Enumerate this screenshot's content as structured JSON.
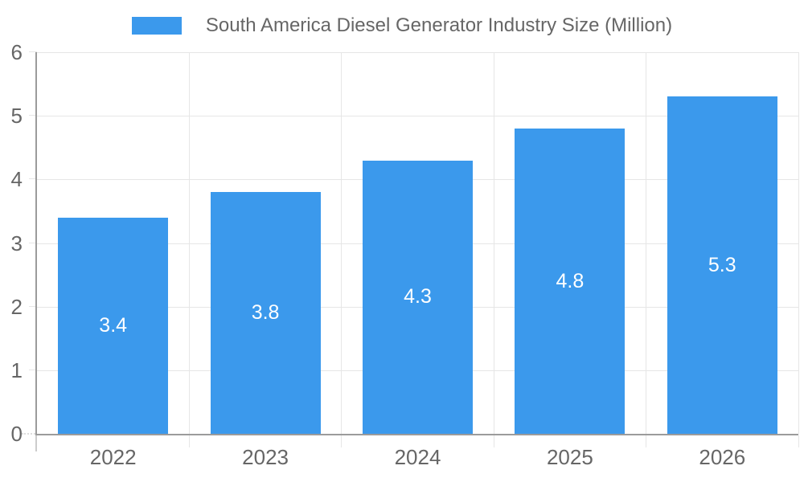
{
  "chart_data": {
    "type": "bar",
    "title": "South America Diesel Generator Industry Size (Million)",
    "categories": [
      "2022",
      "2023",
      "2024",
      "2025",
      "2026"
    ],
    "values": [
      3.4,
      3.8,
      4.3,
      4.8,
      5.3
    ],
    "value_labels": [
      "3.4",
      "3.8",
      "4.3",
      "4.8",
      "5.3"
    ],
    "xlabel": "",
    "ylabel": "",
    "ylim": [
      0,
      6
    ],
    "y_ticks": [
      "0",
      "1",
      "2",
      "3",
      "4",
      "5",
      "6"
    ],
    "grid": true,
    "legend_position": "top",
    "colors": {
      "bar": "#3B99EC",
      "grid": "#E6E6E6",
      "axis": "#9B9B9B",
      "tick_text": "#666666",
      "value_text": "#FFFFFF",
      "background": "#FFFFFF"
    }
  }
}
